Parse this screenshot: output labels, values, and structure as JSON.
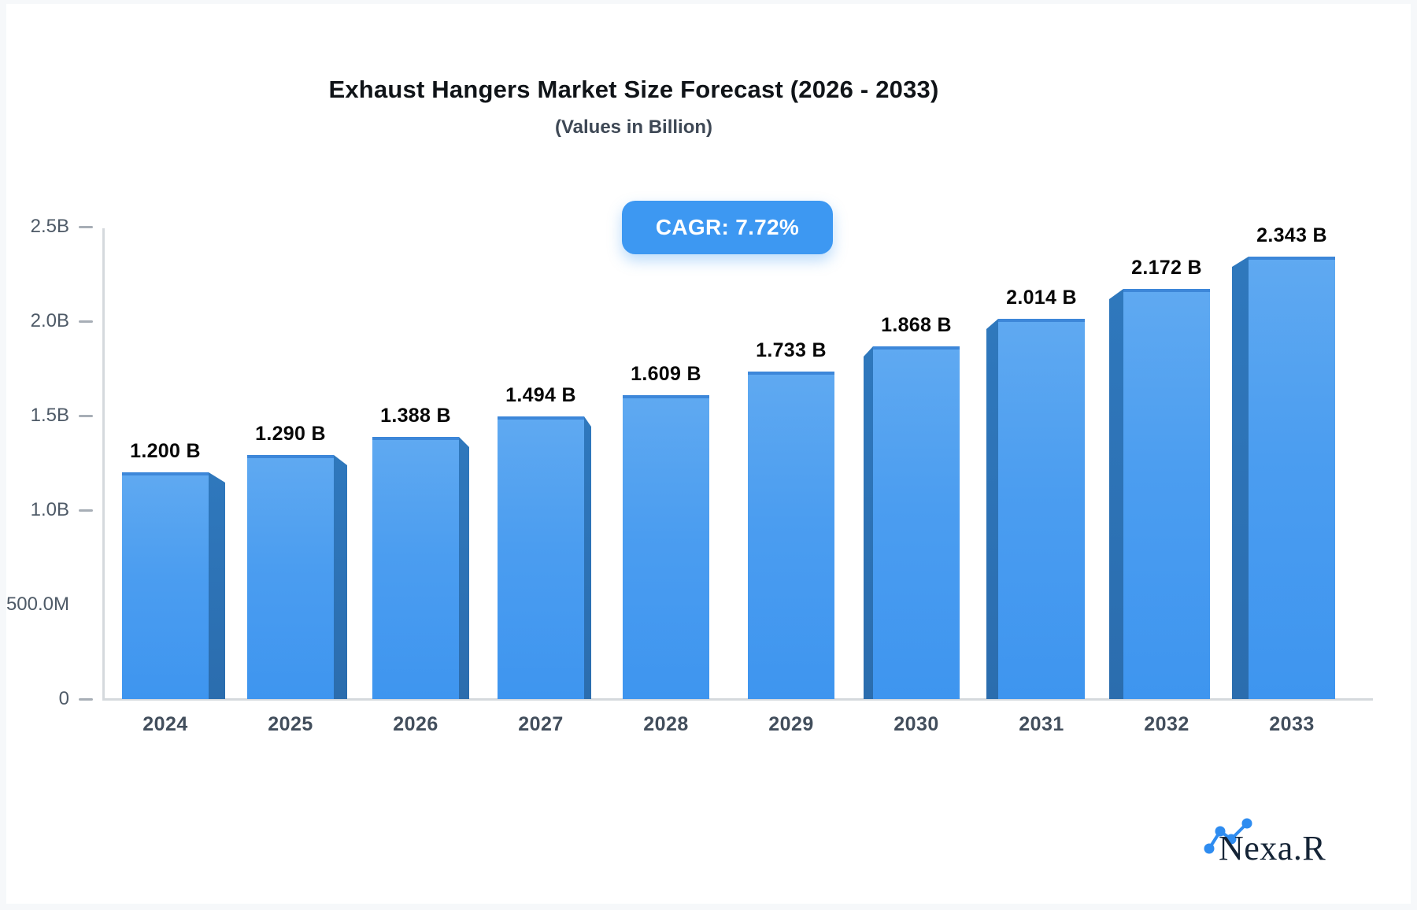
{
  "page": {
    "title": "Exhaust Hangers Market Size Forecast (2026 - 2033)",
    "subtitle": "(Values in Billion)",
    "cagr_label": "CAGR: 7.72%",
    "brand_name": "Nexa.R"
  },
  "chart_data": {
    "type": "bar",
    "title": "Exhaust Hangers Market Size Forecast (2026 - 2033)",
    "subtitle": "(Values in Billion)",
    "annotation": "CAGR: 7.72%",
    "categories": [
      "2024",
      "2025",
      "2026",
      "2027",
      "2028",
      "2029",
      "2030",
      "2031",
      "2032",
      "2033"
    ],
    "values": [
      1.2,
      1.29,
      1.388,
      1.494,
      1.609,
      1.733,
      1.868,
      2.014,
      2.172,
      2.343
    ],
    "value_labels": [
      "1.200 B",
      "1.290 B",
      "1.388 B",
      "1.494 B",
      "1.609 B",
      "1.733 B",
      "1.868 B",
      "2.014 B",
      "2.172 B",
      "2.343 B"
    ],
    "unit": "Billion",
    "xlabel": "",
    "ylabel": "",
    "ylim": [
      0,
      2.5
    ],
    "yticks": [
      "2.5B",
      "2.0B",
      "1.5B",
      "1.0B",
      "500.0M",
      "0"
    ],
    "grid": false,
    "legend": false,
    "style": "3d-bars",
    "colors": {
      "bar_face_top": "#5fa9f1",
      "bar_face_bottom": "#3e95ef",
      "bar_top_edge": "#3d87d9",
      "bar_side": "#2d74b8",
      "badge_bg": "#3d98f2",
      "badge_text": "#ffffff",
      "axis_line": "#d5d9dd",
      "tick_text": "#4e5a67",
      "xlabel_text": "#424e5c",
      "value_text": "#070707",
      "logo_icon": "#2e8cf0",
      "logo_text": "#152436"
    }
  }
}
